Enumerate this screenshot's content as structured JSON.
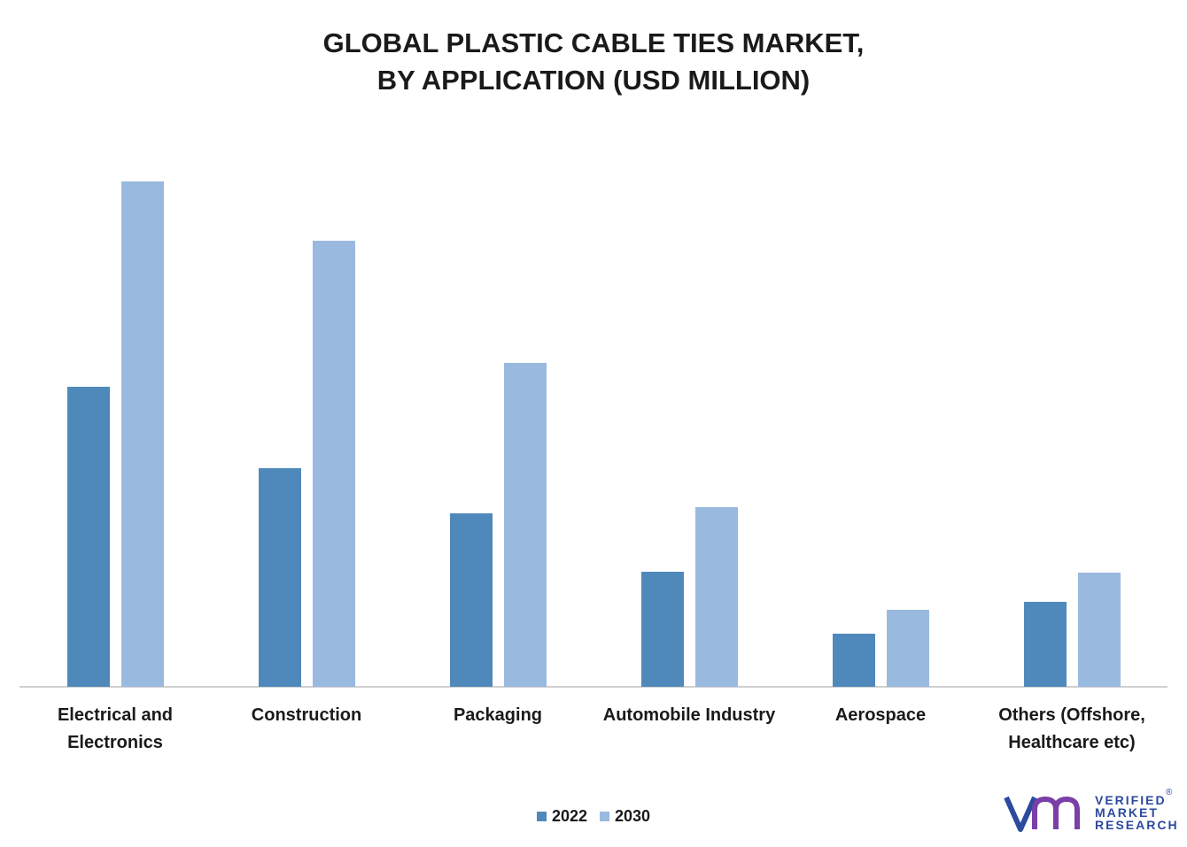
{
  "chart_data": {
    "type": "bar",
    "title": [
      "GLOBAL PLASTIC CABLE TIES MARKET,",
      "BY APPLICATION (USD MILLION)"
    ],
    "categories": [
      [
        "Electrical and",
        "Electronics"
      ],
      [
        "Construction"
      ],
      [
        "Packaging"
      ],
      [
        "Automobile Industry"
      ],
      [
        "Aerospace"
      ],
      [
        "Others (Offshore,",
        "Healthcare etc)"
      ]
    ],
    "series": [
      {
        "name": "2022",
        "color": "#4f89bc",
        "values": [
          339,
          247,
          196,
          130,
          60,
          96
        ]
      },
      {
        "name": "2030",
        "color": "#9ab9df",
        "values": [
          571,
          504,
          366,
          203,
          87,
          129
        ]
      }
    ],
    "ylim": [
      0,
      600
    ],
    "grid": false,
    "legend_position": "bottom-center",
    "y_axis_visible": false
  },
  "logo": {
    "lines": [
      "VERIFIED",
      "MARKET",
      "RESEARCH"
    ],
    "mark": "vmr",
    "registered": "®",
    "color": "#2c4a9e"
  }
}
